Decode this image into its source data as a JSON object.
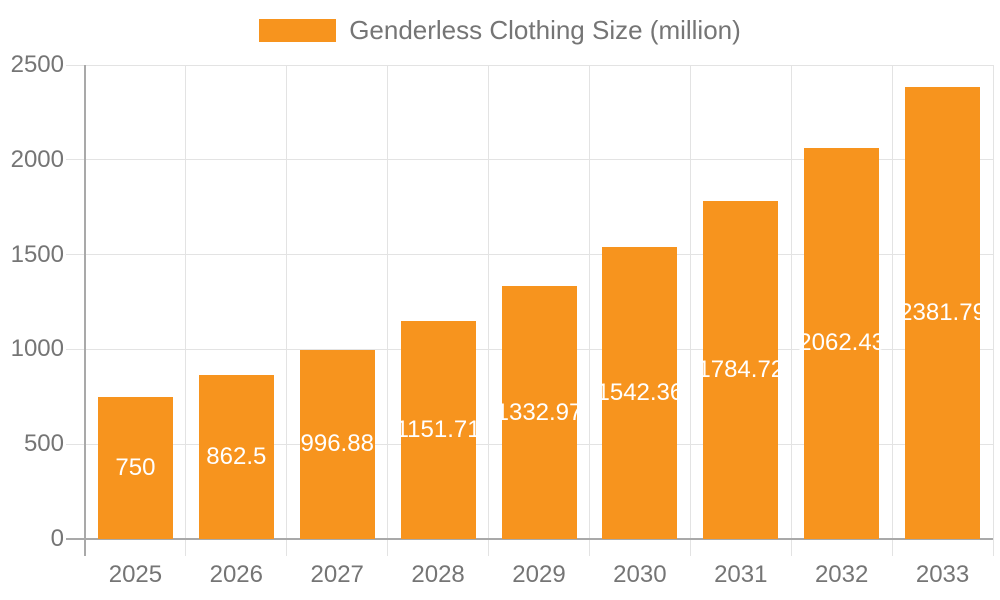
{
  "legend": {
    "label": "Genderless Clothing Size (million)"
  },
  "chart_data": {
    "type": "bar",
    "title": "Genderless Clothing Size (million)",
    "xlabel": "",
    "ylabel": "",
    "categories": [
      "2025",
      "2026",
      "2027",
      "2028",
      "2029",
      "2030",
      "2031",
      "2032",
      "2033"
    ],
    "values": [
      750,
      862.5,
      996.88,
      1151.71,
      1332.97,
      1542.36,
      1784.72,
      2062.43,
      2381.79
    ],
    "value_labels": [
      "750",
      "862.5",
      "996.88",
      "1151.71",
      "1332.97",
      "1542.36",
      "1784.72",
      "2062.43",
      "2381.79"
    ],
    "ylim": [
      0,
      2500
    ],
    "yticks": [
      0,
      500,
      1000,
      1500,
      2000,
      2500
    ],
    "grid": true,
    "legend_position": "top",
    "colors": {
      "bar": "#f7941e",
      "value_label": "#ffffff",
      "axis_text": "#757575",
      "legend_text": "#757575",
      "gridline": "#e3e3e3",
      "axis_line": "#a9a9a9",
      "background": "#ffffff"
    }
  }
}
